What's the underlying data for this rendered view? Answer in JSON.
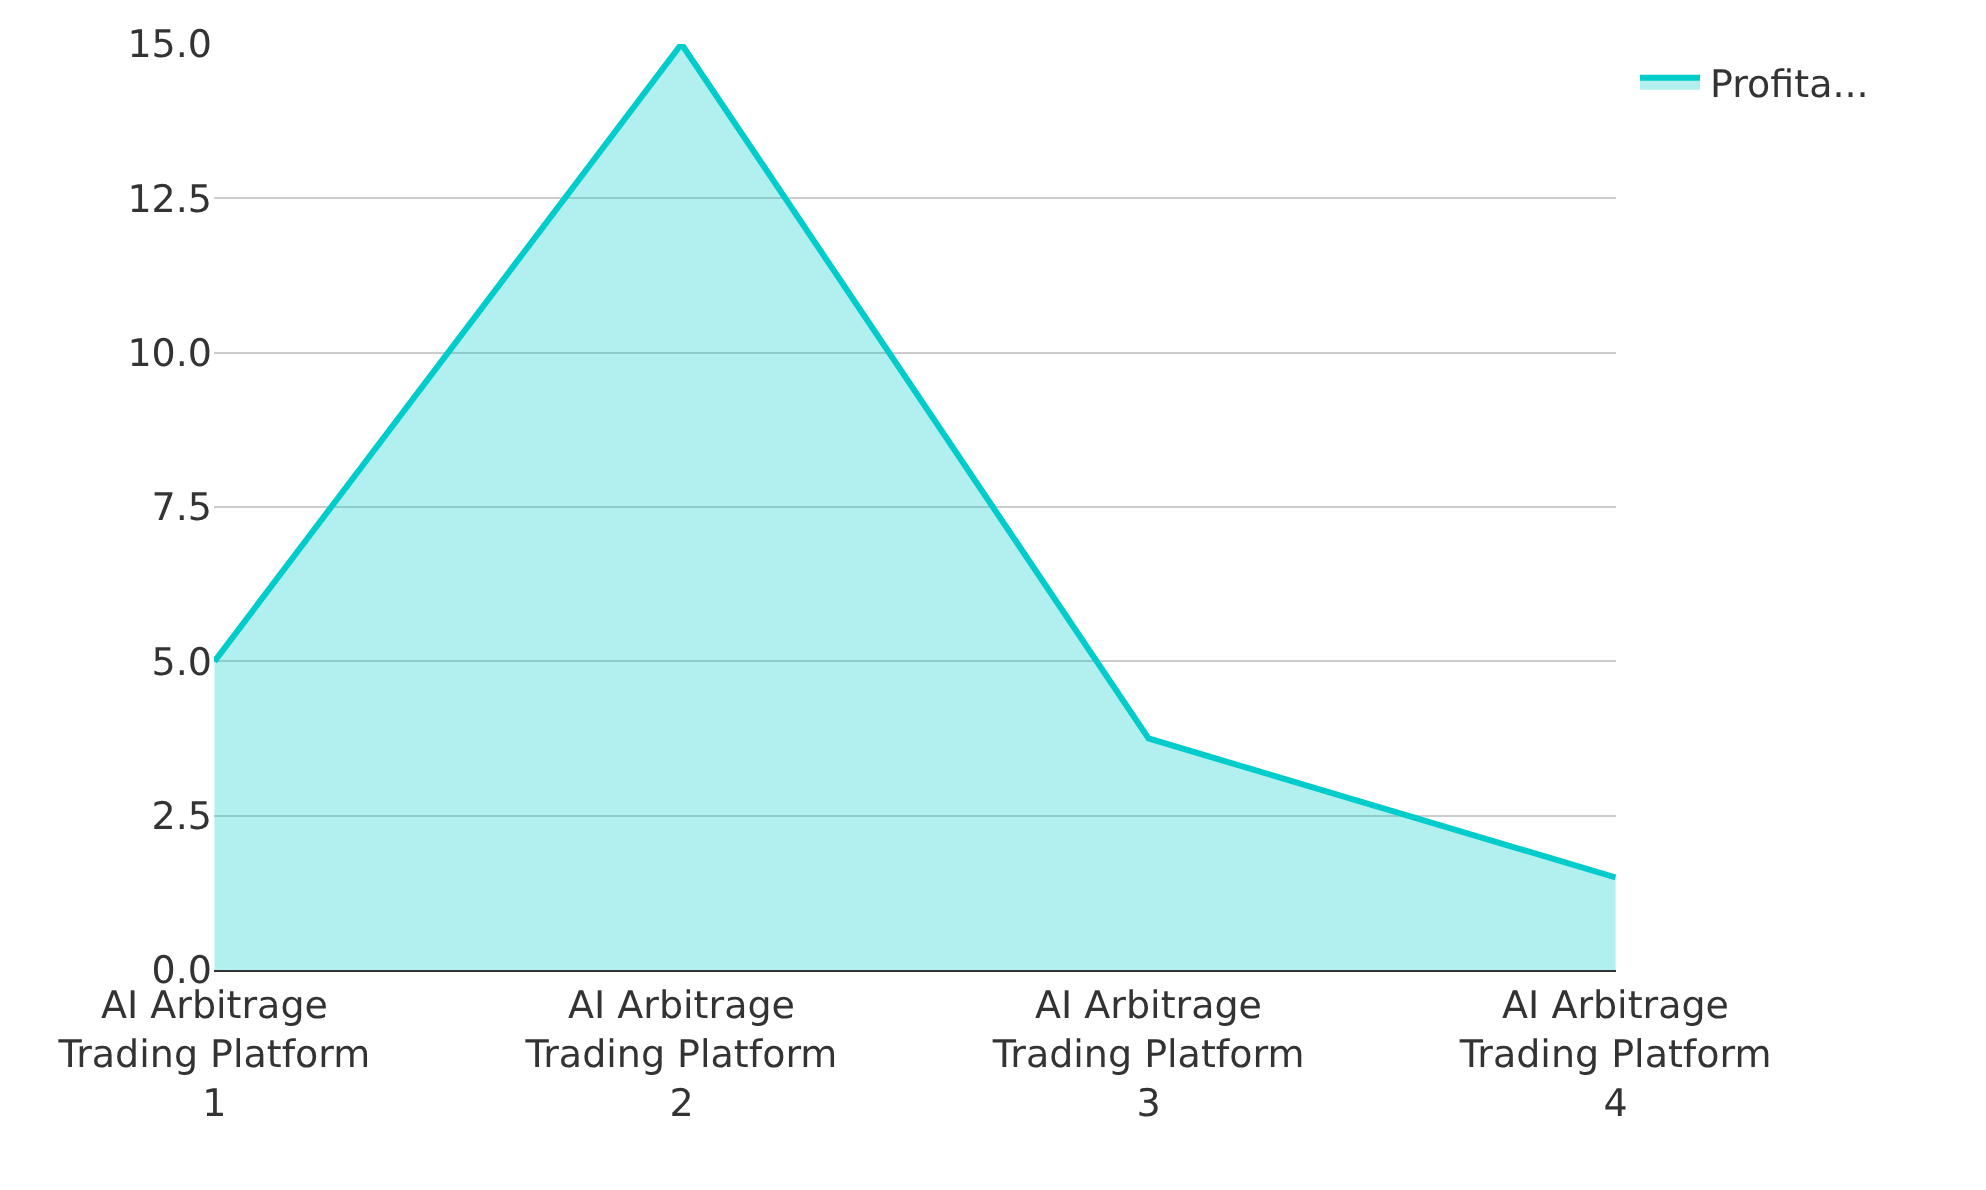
{
  "chart_data": {
    "type": "area",
    "categories": [
      "AI Arbitrage\nTrading Platform\n1",
      "AI Arbitrage\nTrading Platform\n2",
      "AI Arbitrage\nTrading Platform\n3",
      "AI Arbitrage\nTrading Platform\n4"
    ],
    "series": [
      {
        "name": "Profita...",
        "color": "#00cccc",
        "values": [
          5,
          15,
          3.75,
          1.5
        ]
      }
    ],
    "ylim": [
      0,
      15
    ],
    "yticks": [
      {
        "value": 0,
        "label": "0.0"
      },
      {
        "value": 2.5,
        "label": "2.5"
      },
      {
        "value": 5,
        "label": "5.0"
      },
      {
        "value": 7.5,
        "label": "7.5"
      },
      {
        "value": 10,
        "label": "10.0"
      },
      {
        "value": 12.5,
        "label": "12.5"
      },
      {
        "value": 15,
        "label": "15.0"
      }
    ],
    "grid": "y",
    "legend": "top right",
    "marker": "none"
  }
}
